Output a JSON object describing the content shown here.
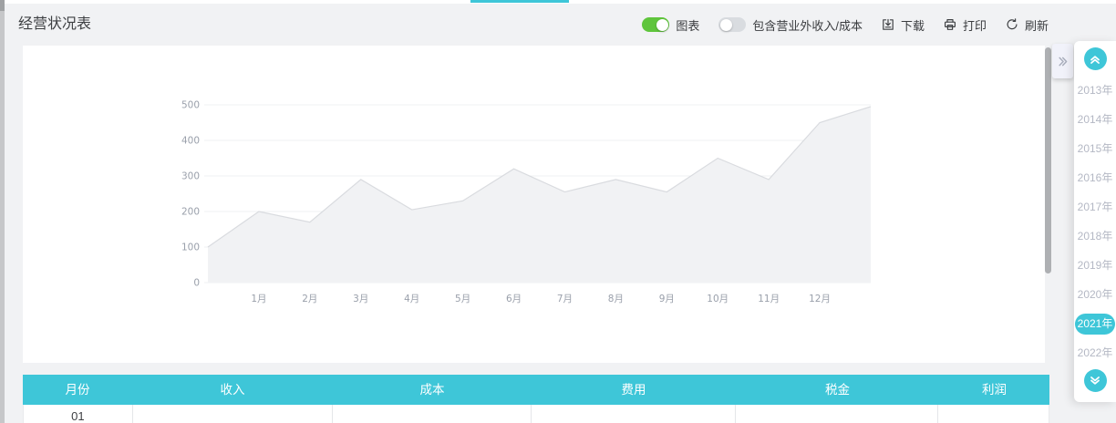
{
  "page": {
    "title": "经营状况表"
  },
  "toolbar": {
    "chart_toggle": {
      "label": "图表",
      "on": true
    },
    "include_toggle": {
      "label": "包含营业外收入/成本",
      "on": false
    },
    "download_label": "下载",
    "print_label": "打印",
    "refresh_label": "刷新"
  },
  "chart_data": {
    "type": "area",
    "title": "",
    "categories": [
      "1月",
      "2月",
      "3月",
      "4月",
      "5月",
      "6月",
      "7月",
      "8月",
      "9月",
      "10月",
      "11月",
      "12月"
    ],
    "values": [
      200,
      170,
      290,
      205,
      230,
      320,
      255,
      290,
      255,
      350,
      290,
      450
    ],
    "edge_start": 100,
    "edge_end": 495,
    "xlabel": "",
    "ylabel": "",
    "ylim": [
      0,
      500
    ],
    "yticks": [
      0,
      100,
      200,
      300,
      400,
      500
    ],
    "grid": true,
    "legend": false,
    "fill_color": "#f1f2f4",
    "line_color": "#d9dbdf"
  },
  "year_panel": {
    "years": [
      "2013年",
      "2014年",
      "2015年",
      "2016年",
      "2017年",
      "2018年",
      "2019年",
      "2020年",
      "2021年",
      "2022年"
    ],
    "selected": "2021年"
  },
  "table": {
    "headers": [
      "月份",
      "收入",
      "成本",
      "费用",
      "税金",
      "利润"
    ],
    "rows": [
      [
        "01",
        "",
        "",
        "",
        "",
        ""
      ]
    ]
  },
  "colors": {
    "accent": "#3ec6d8",
    "toggle_on": "#5fc53c",
    "grid_line": "#eff1f3",
    "axis_text": "#9aa0ab"
  }
}
